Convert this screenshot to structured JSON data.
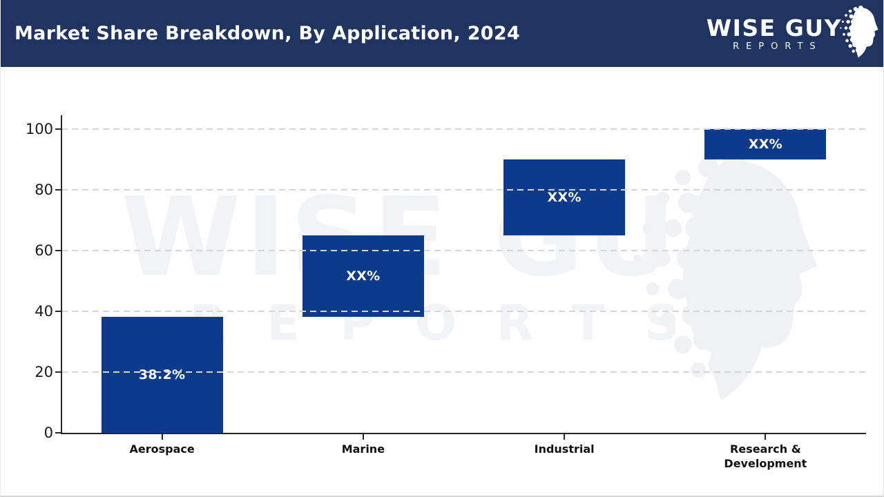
{
  "header": {
    "title": "Market Share Breakdown, By Application, 2024",
    "logo": {
      "line1": "WISE GUY",
      "line2": "REPORTS"
    }
  },
  "watermark": {
    "line1": "WISE GUY",
    "line2": "REPORTS"
  },
  "chart_data": {
    "type": "bar",
    "subtype": "floating-waterfall",
    "title": "Market Share Breakdown, By Application, 2024",
    "categories": [
      "Aerospace",
      "Marine",
      "Industrial",
      "Research &\nDevelopment"
    ],
    "bars": [
      {
        "category": "Aerospace",
        "start": 0,
        "end": 38.2,
        "label": "38.2%"
      },
      {
        "category": "Marine",
        "start": 38.2,
        "end": 65,
        "label": "XX%"
      },
      {
        "category": "Industrial",
        "start": 65,
        "end": 90,
        "label": "XX%"
      },
      {
        "category": "Research & Development",
        "start": 90,
        "end": 100,
        "label": "XX%"
      }
    ],
    "yticks": [
      0,
      20,
      40,
      60,
      80,
      100
    ],
    "ylim": [
      0,
      105
    ],
    "xlabel": "",
    "ylabel": "",
    "grid": {
      "axis": "y",
      "style": "dashed",
      "color": "#d6d6d6",
      "above_bars": true
    },
    "legend": "none",
    "colors": {
      "bar": "#0c3b8d",
      "bar_label": "#ffffff",
      "header_bg": "#203462",
      "axis": "#262626",
      "grid": "#d6d6d6",
      "watermark": "#f2f3f6"
    }
  }
}
